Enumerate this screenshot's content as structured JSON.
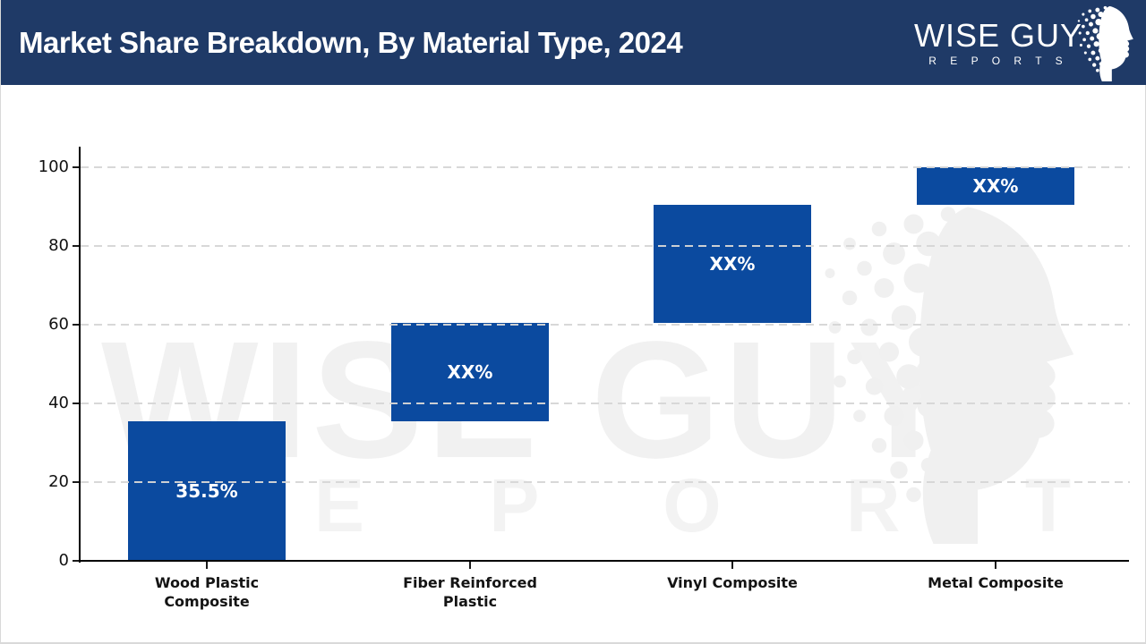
{
  "header": {
    "title": "Market Share Breakdown, By Material Type, 2024",
    "bg_color": "#1F3A67",
    "logo": {
      "wordmark": "WISE GUY",
      "subtext": "R E P O R T S"
    }
  },
  "watermark": {
    "wordmark": "WISE GUY",
    "subtext": "R E P O R T S"
  },
  "chart_data": {
    "type": "bar",
    "subtype": "waterfall-floating-bars",
    "title": "Market Share Breakdown, By Material Type, 2024",
    "categories": [
      "Wood Plastic Composite",
      "Fiber Reinforced Plastic",
      "Vinyl Composite",
      "Metal Composite"
    ],
    "category_label_lines": [
      [
        "Wood Plastic",
        "Composite"
      ],
      [
        "Fiber Reinforced",
        "Plastic"
      ],
      [
        "Vinyl Composite"
      ],
      [
        "Metal Composite"
      ]
    ],
    "segments": [
      {
        "category": "Wood Plastic Composite",
        "start": 0,
        "end": 35.5,
        "label": "35.5%"
      },
      {
        "category": "Fiber Reinforced Plastic",
        "start": 35.5,
        "end": 60.5,
        "label": "XX%"
      },
      {
        "category": "Vinyl Composite",
        "start": 60.5,
        "end": 90.5,
        "label": "XX%"
      },
      {
        "category": "Metal Composite",
        "start": 90.5,
        "end": 100,
        "label": "XX%"
      }
    ],
    "ylim": [
      0,
      100
    ],
    "yticks": [
      0,
      20,
      40,
      60,
      80,
      100
    ],
    "xlabel": "",
    "ylabel": "",
    "grid": "dashed-horizontal",
    "legend": "none",
    "bar_color": "#0B4A9F",
    "bar_label_color": "#FFFFFF",
    "axis_color": "#000000"
  }
}
